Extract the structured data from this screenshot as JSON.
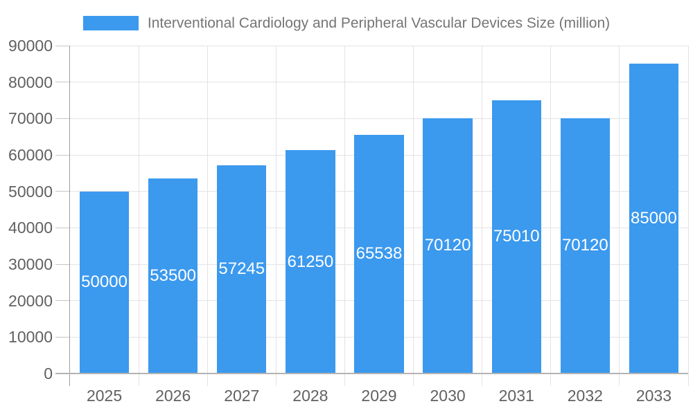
{
  "colors": {
    "background": "#ffffff",
    "bar": "#3b99ee",
    "grid": "#e3e3e3",
    "axis_line": "#9e9e9e",
    "baseline": "#b3b3b3",
    "tick": "#c6c6c6",
    "axis_label": "#616161",
    "title": "#757575",
    "value_label": "#ffffff"
  },
  "legend": {
    "label": "Interventional Cardiology and Peripheral Vascular Devices Size (million)"
  },
  "chart_data": {
    "type": "bar",
    "title": "Interventional Cardiology and Peripheral Vascular Devices Size (million)",
    "xlabel": "",
    "ylabel": "",
    "categories": [
      "2025",
      "2026",
      "2027",
      "2028",
      "2029",
      "2030",
      "2031",
      "2032",
      "2033"
    ],
    "series": [
      {
        "name": "Interventional Cardiology and Peripheral Vascular Devices Size (million)",
        "values": [
          50000,
          53500,
          57245,
          61250,
          65538,
          70120,
          75010,
          70120,
          85000
        ]
      }
    ],
    "ylim": [
      0,
      90000
    ],
    "ytick_step": 10000,
    "yticks": [
      0,
      10000,
      20000,
      30000,
      40000,
      50000,
      60000,
      70000,
      80000,
      90000
    ],
    "grid": true,
    "legend_position": "top-center",
    "value_labels_position": "inside-center"
  }
}
